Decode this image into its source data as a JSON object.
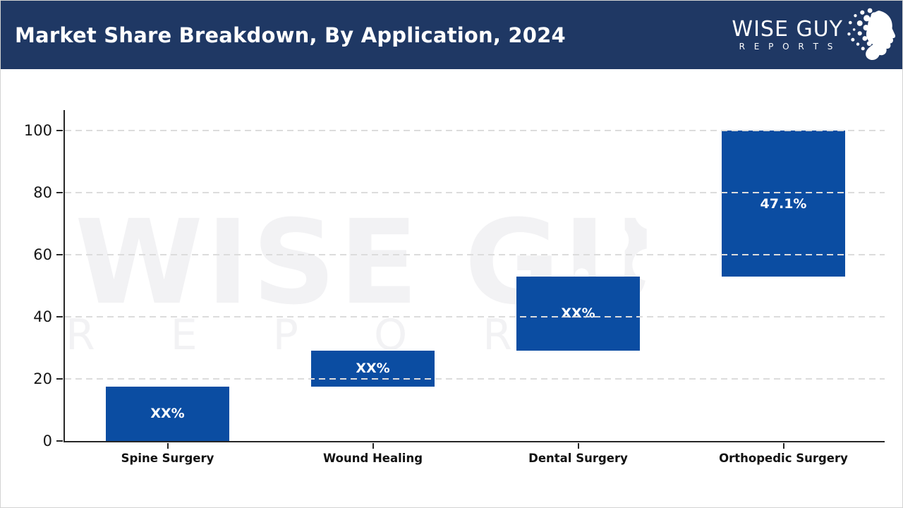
{
  "header": {
    "title": "Market Share Breakdown, By Application, 2024",
    "logo": {
      "line1": "WISE GUY",
      "line2": "R E P O R T S"
    }
  },
  "watermark": {
    "line1": "WISE GUY",
    "line2": "R E P O R T S"
  },
  "colors": {
    "header_bg": "#1f3864",
    "bar": "#0b4da2",
    "grid": "#dcdcdc",
    "axis": "#262626",
    "watermark": "#efefef"
  },
  "chart_data": {
    "type": "bar",
    "subtype": "floating-segment-waterfall",
    "title": "Market Share Breakdown, By Application, 2024",
    "categories": [
      "Spine Surgery",
      "Wound Healing",
      "Dental Surgery",
      "Orthopedic Surgery"
    ],
    "segments": [
      {
        "category": "Spine Surgery",
        "start": 0,
        "end": 17.6,
        "label": "XX%"
      },
      {
        "category": "Wound Healing",
        "start": 17.6,
        "end": 29.2,
        "label": "XX%"
      },
      {
        "category": "Dental Surgery",
        "start": 29.2,
        "end": 52.9,
        "label": "XX%"
      },
      {
        "category": "Orthopedic Surgery",
        "start": 52.9,
        "end": 100,
        "label": "47.1%"
      }
    ],
    "yticks": [
      0,
      20,
      40,
      60,
      80,
      100
    ],
    "ylim": [
      0,
      107
    ],
    "xlabel": "",
    "ylabel": "",
    "grid": "horizontal-dashed",
    "legend": "none",
    "bar_color": "#0b4da2"
  }
}
